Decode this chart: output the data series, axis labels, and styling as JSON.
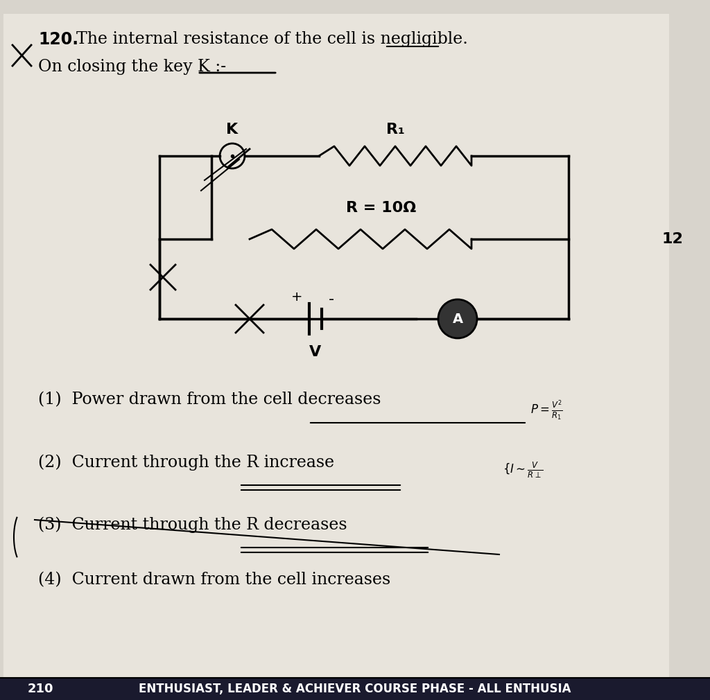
{
  "bg_color": "#d8d4cc",
  "page_bg": "#e8e4dc",
  "title_text": "The internal resistance of the cell is negligible.",
  "subtitle_text": "On closing the key K :-",
  "question_num": "120.",
  "circuit_label_K": "K",
  "circuit_label_R1": "R₁",
  "circuit_label_R": "R = 10Ω",
  "circuit_label_V": "V",
  "circuit_label_A": "A",
  "option1": "(1)  Power drawn from the cell decreases",
  "option2": "(2)  Current through the R increase",
  "option3": "(3)  Current through the R decreases",
  "option4": "(4)  Current drawn from the cell increases",
  "footer": "ENTHUSIAST, LEADER & ACHIEVER COURSE PHASE - ALL ENTHUSIA",
  "footer_page": "210",
  "annotation1": "P=ᵁ²/R₁",
  "annotation2": "{I~ᵁ/R⊥",
  "right_page_num": "12"
}
